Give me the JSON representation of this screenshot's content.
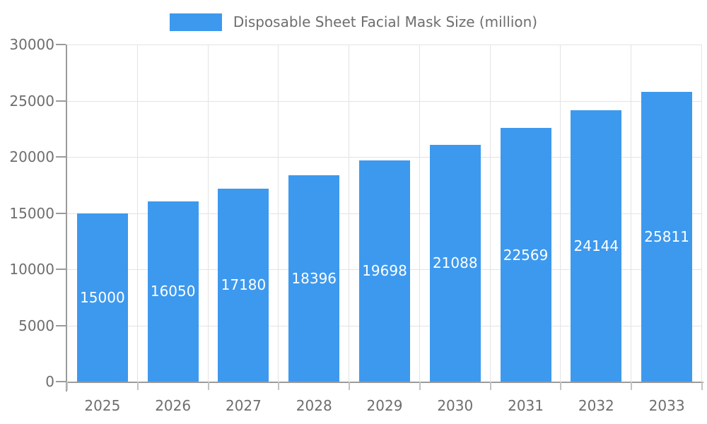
{
  "legend": {
    "label": "Disposable Sheet Facial Mask Size (million)"
  },
  "chart_data": {
    "type": "bar",
    "title": "Disposable Sheet Facial Mask Size (million)",
    "categories": [
      "2025",
      "2026",
      "2027",
      "2028",
      "2029",
      "2030",
      "2031",
      "2032",
      "2033"
    ],
    "values": [
      15000,
      16050,
      17180,
      18396,
      19698,
      21088,
      22569,
      24144,
      25811
    ],
    "series": [
      {
        "name": "Disposable Sheet Facial Mask Size (million)",
        "values": [
          15000,
          16050,
          17180,
          18396,
          19698,
          21088,
          22569,
          24144,
          25811
        ]
      }
    ],
    "xlabel": "",
    "ylabel": "",
    "ylim": [
      0,
      30000
    ],
    "yticks": [
      0,
      5000,
      10000,
      15000,
      20000,
      25000,
      30000
    ],
    "grid": true,
    "legend_position": "top",
    "value_labels": "inside-center-white",
    "colors": {
      "bar": "#3d99ee",
      "value_label": "#ffffff",
      "axis_line": "#9b9b9b",
      "gridline": "#e3e3e3",
      "tick": "#c2c2c2",
      "axis_text": "#6e6e6e"
    }
  }
}
